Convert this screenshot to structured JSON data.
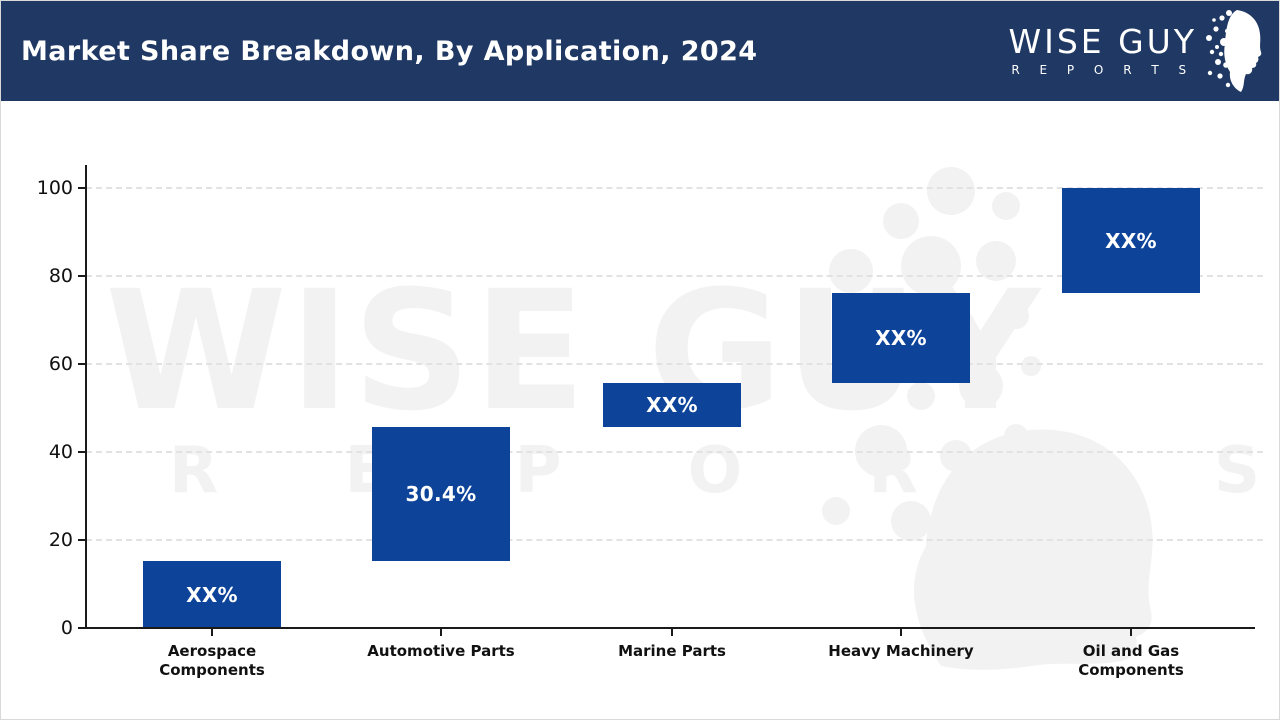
{
  "header": {
    "title": "Market Share Breakdown, By Application, 2024",
    "logo": {
      "name": "WISE GUY",
      "sub": "R E P O R T S"
    }
  },
  "watermark": {
    "name": "WISE GUY",
    "sub": "R E P O R T S"
  },
  "chart_data": {
    "type": "bar",
    "variant": "floating-segment-waterfall",
    "title": "Market Share Breakdown, By Application, 2024",
    "categories": [
      "Aerospace Components",
      "Automotive Parts",
      "Marine Parts",
      "Heavy Machinery",
      "Oil and Gas Components"
    ],
    "category_lines": [
      [
        "Aerospace",
        "Components"
      ],
      [
        "Automotive Parts"
      ],
      [
        "Marine Parts"
      ],
      [
        "Heavy Machinery"
      ],
      [
        "Oil and Gas",
        "Components"
      ]
    ],
    "segments": [
      {
        "category": "Aerospace Components",
        "start": 0,
        "end": 15.2,
        "label": "XX%"
      },
      {
        "category": "Automotive Parts",
        "start": 15.2,
        "end": 45.6,
        "label": "30.4%"
      },
      {
        "category": "Marine Parts",
        "start": 45.6,
        "end": 55.6,
        "label": "XX%"
      },
      {
        "category": "Heavy Machinery",
        "start": 55.6,
        "end": 76.1,
        "label": "XX%"
      },
      {
        "category": "Oil and Gas Components",
        "start": 76.1,
        "end": 100,
        "label": "XX%"
      }
    ],
    "yticks": [
      0,
      20,
      40,
      60,
      80,
      100
    ],
    "ylim": [
      0,
      105
    ],
    "xlabel": "",
    "ylabel": "",
    "grid": {
      "horizontal": true,
      "style": "dashed"
    },
    "legend": false,
    "colors": {
      "header_bg": "#1f3864",
      "bar": "#0d4499",
      "bar_label": "#ffffff",
      "grid": "#e2e2e2",
      "axis": "#1a1a1a",
      "tick_label": "#111111",
      "watermark": "#f2f2f2",
      "logo_text": "#ffffff"
    }
  }
}
